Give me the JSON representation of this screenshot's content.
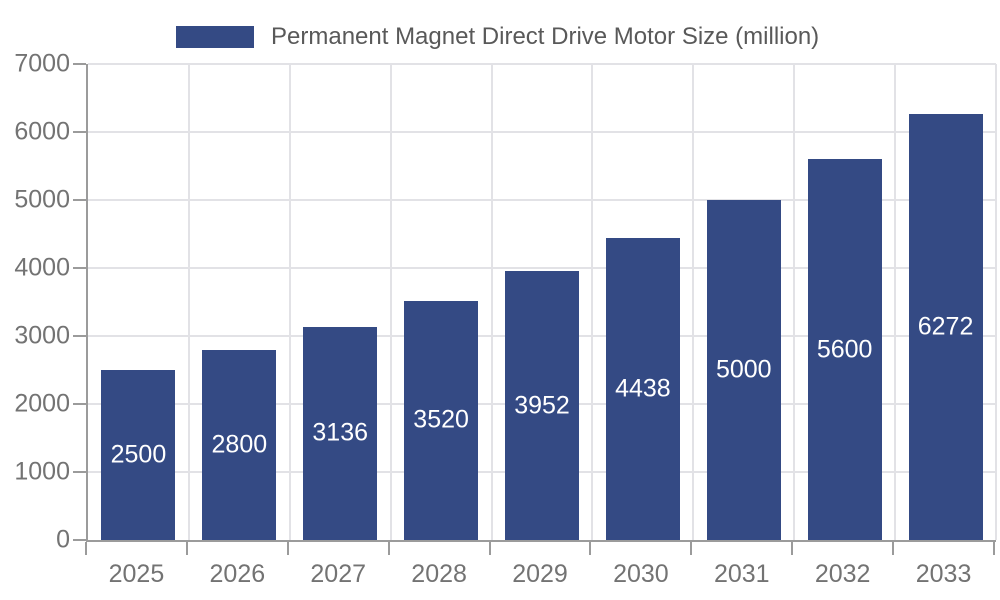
{
  "chart_data": {
    "type": "bar",
    "title": "Permanent Magnet Direct Drive Motor Size (million)",
    "legend": [
      "Permanent Magnet Direct Drive Motor Size (million)"
    ],
    "legend_position": "top",
    "categories": [
      "2025",
      "2026",
      "2027",
      "2028",
      "2029",
      "2030",
      "2031",
      "2032",
      "2033"
    ],
    "series": [
      {
        "name": "Permanent Magnet Direct Drive Motor Size (million)",
        "values": [
          2500,
          2800,
          3136,
          3520,
          3952,
          4438,
          5000,
          5600,
          6272
        ]
      }
    ],
    "xlabel": "",
    "ylabel": "",
    "ylim": [
      0,
      7000
    ],
    "y_ticks": [
      0,
      1000,
      2000,
      3000,
      4000,
      5000,
      6000,
      7000
    ],
    "grid": true,
    "value_labels": "inside-center",
    "colors": {
      "bar": "#344A84",
      "value_label": "#FFFFFF",
      "grid_line": "#E2E2E6",
      "axis_line": "#9B9B9B",
      "tick_label": "#737373",
      "legend_text": "#595959",
      "background": "#FFFFFF"
    }
  }
}
